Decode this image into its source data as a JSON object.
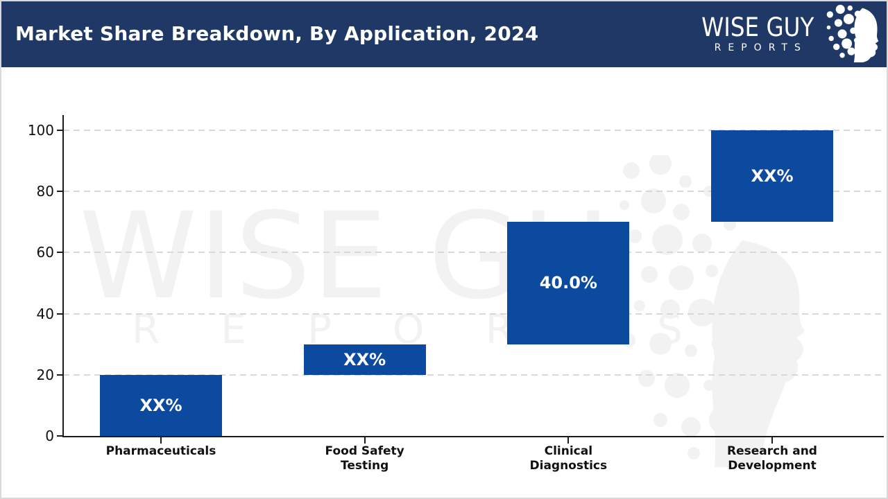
{
  "header": {
    "title": "Market Share Breakdown, By Application, 2024",
    "bg_color": "#1f3865",
    "logo": {
      "name": "WISE GUY",
      "sub": "REPORTS"
    }
  },
  "watermark": {
    "big_text": "WISE GU",
    "sub_text": "REPORTS"
  },
  "chart_data": {
    "type": "bar",
    "variant": "floating-segment-waterfall",
    "title": "Market Share Breakdown, By Application, 2024",
    "categories": [
      "Pharmaceuticals",
      "Food Safety\nTesting",
      "Clinical\nDiagnostics",
      "Research and\nDevelopment"
    ],
    "segments": [
      {
        "category": "Pharmaceuticals",
        "start": 0,
        "end": 20,
        "label": "XX%"
      },
      {
        "category": "Food Safety Testing",
        "start": 20,
        "end": 30,
        "label": "XX%"
      },
      {
        "category": "Clinical Diagnostics",
        "start": 30,
        "end": 70,
        "label": "40.0%"
      },
      {
        "category": "Research and Development",
        "start": 70,
        "end": 100,
        "label": "XX%"
      }
    ],
    "yticks": [
      0,
      20,
      40,
      60,
      80,
      100
    ],
    "ylim": [
      0,
      105
    ],
    "xlabel": "",
    "ylabel": "",
    "legend": "none",
    "grid": {
      "horizontal": true,
      "style": "dashed",
      "color": "#d8d8d8"
    },
    "bar_color": "#0c4a9f",
    "bar_label_color": "#ffffff",
    "axis_color": "#1a1a1a"
  }
}
